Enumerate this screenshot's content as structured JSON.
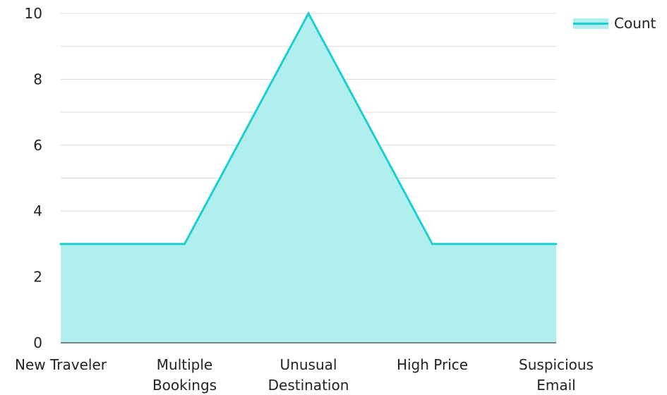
{
  "chart_data": {
    "type": "area",
    "title": "",
    "xlabel": "",
    "ylabel": "",
    "categories": [
      "New Traveler",
      "Multiple Bookings",
      "Unusual Destination",
      "High Price",
      "Suspicious Email"
    ],
    "category_lines": [
      [
        "New Traveler"
      ],
      [
        "Multiple",
        "Bookings"
      ],
      [
        "Unusual",
        "Destination"
      ],
      [
        "High Price"
      ],
      [
        "Suspicious",
        "Email"
      ]
    ],
    "series": [
      {
        "name": "Count",
        "values": [
          3,
          3,
          10,
          3,
          3
        ],
        "line_color": "#1ccfcf",
        "fill_color": "#b1eeee"
      }
    ],
    "ylim": [
      0,
      10
    ],
    "yticks": [
      "0",
      "2",
      "4",
      "6",
      "8",
      "10"
    ],
    "ytick_values": [
      0,
      2,
      4,
      6,
      8,
      10
    ],
    "grid": true,
    "legend_position": "top-right"
  }
}
